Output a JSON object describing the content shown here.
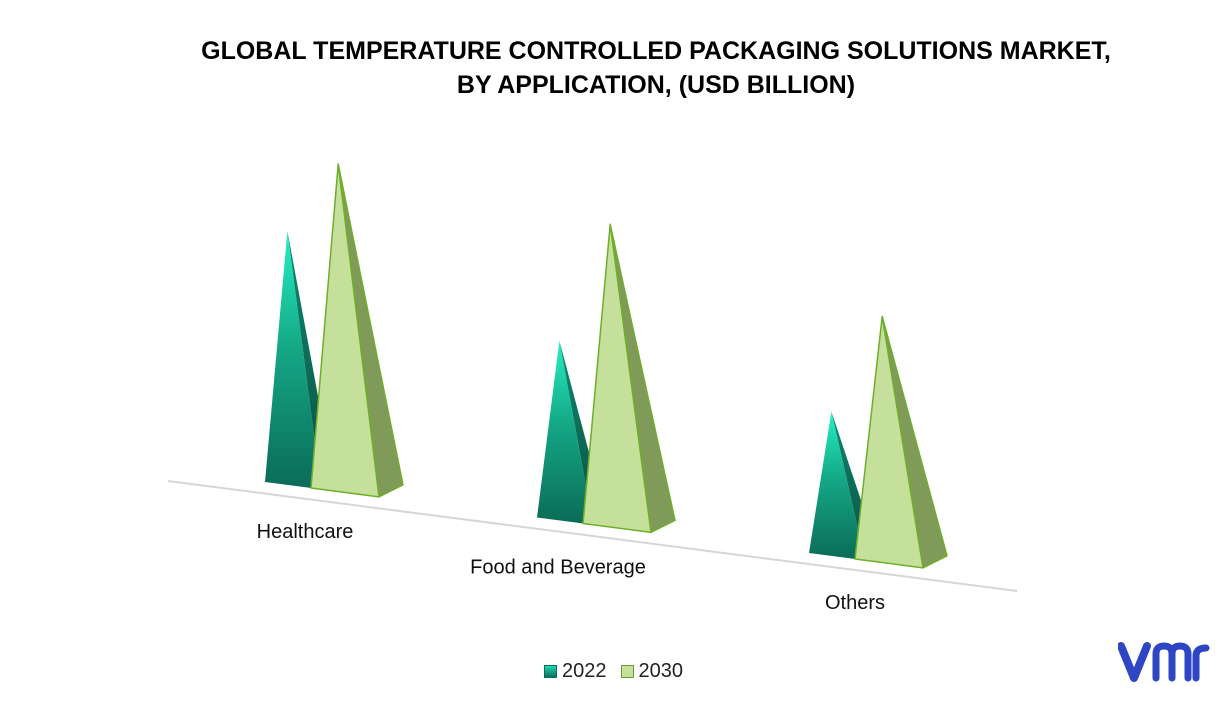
{
  "title_line1": "GLOBAL TEMPERATURE CONTROLLED PACKAGING SOLUTIONS MARKET,",
  "title_line2": "BY APPLICATION, (USD BILLION)",
  "chart_data": {
    "type": "bar",
    "title": "GLOBAL TEMPERATURE CONTROLLED PACKAGING SOLUTIONS MARKET, BY APPLICATION, (USD BILLION)",
    "categories": [
      "Healthcare",
      "Food and Beverage",
      "Others"
    ],
    "series": [
      {
        "name": "2022",
        "values": [
          7.3,
          5.2,
          4.2
        ],
        "color": "#13a486"
      },
      {
        "name": "2030",
        "values": [
          9.4,
          8.7,
          7.1
        ],
        "color": "#c5e09a"
      }
    ],
    "ylim": [
      0,
      10
    ],
    "grid": false,
    "legend": "bottom"
  },
  "logo_text": "vmr",
  "colors": {
    "brand": "#2f46c4"
  }
}
